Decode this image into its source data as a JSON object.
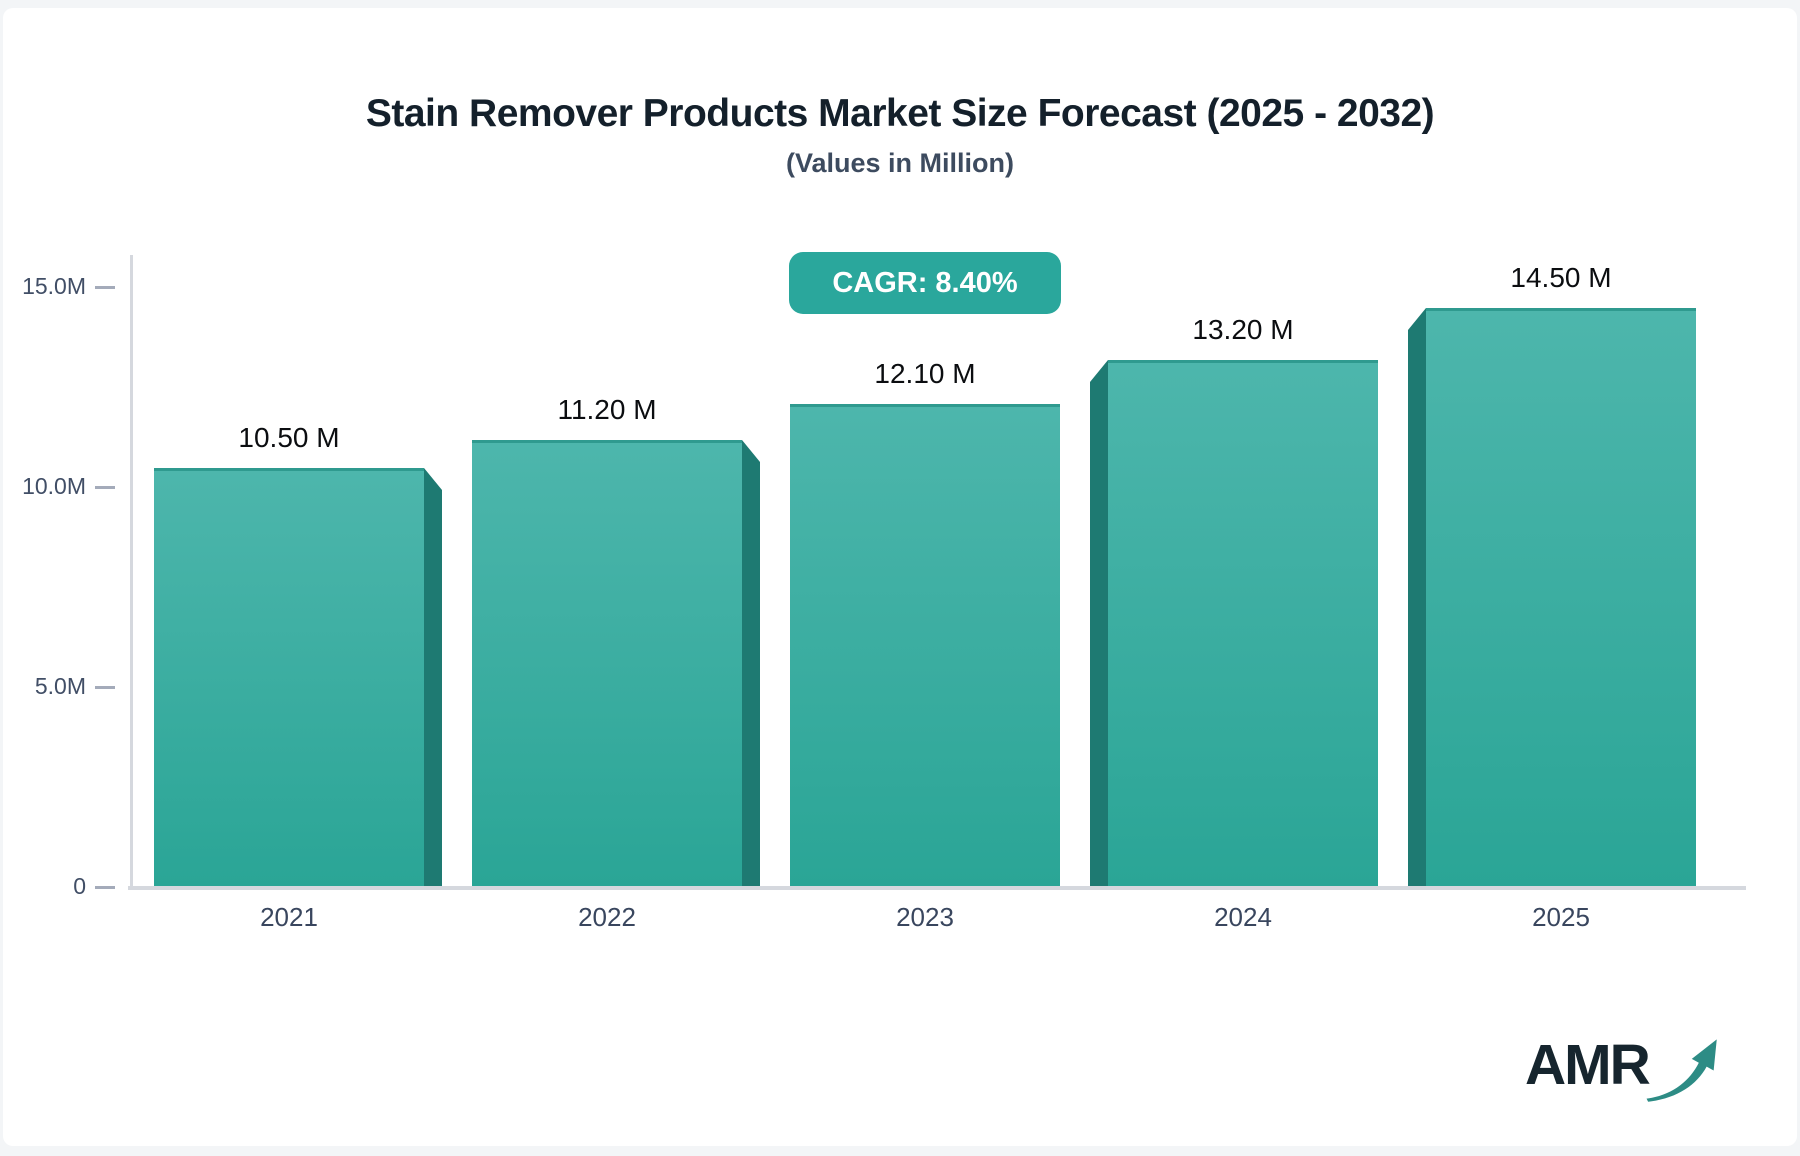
{
  "header": {
    "title": "Stain Remover Products Market Size Forecast (2025 - 2032)",
    "subtitle": "(Values in Million)",
    "cagr_badge": "CAGR: 8.40%"
  },
  "chart_data": {
    "type": "bar",
    "title": "Stain Remover Products Market Size Forecast (2025 - 2032)",
    "subtitle": "(Values in Million)",
    "cagr_percent": 8.4,
    "unit": "Million",
    "categories": [
      "2021",
      "2022",
      "2023",
      "2024",
      "2025"
    ],
    "values": [
      10.5,
      11.2,
      12.1,
      13.2,
      14.5
    ],
    "value_labels": [
      "10.50 M",
      "11.20 M",
      "12.10 M",
      "13.20 M",
      "14.50 M"
    ],
    "ylim": [
      0,
      15.9
    ],
    "y_ticks": [
      {
        "label": "0",
        "value": 0
      },
      {
        "label": "5.0M",
        "value": 5
      },
      {
        "label": "10.0M",
        "value": 10
      },
      {
        "label": "15.0M",
        "value": 15
      }
    ],
    "grid": false,
    "legend": false,
    "colors": {
      "bar_face_top": "#4db6ac",
      "bar_face_bottom": "#2aa596",
      "bar_side": "#1e7a72",
      "bar_edge": "#2f9a8f",
      "badge_bg": "#2aa79c",
      "badge_text": "#ffffff",
      "axis_line": "#d5d8de",
      "tick_text": "#414e66",
      "value_text": "#0b0d10",
      "logo_text": "#16252e",
      "logo_arrow": "#2d8c85"
    }
  },
  "footer": {
    "logo_text": "AMR"
  }
}
